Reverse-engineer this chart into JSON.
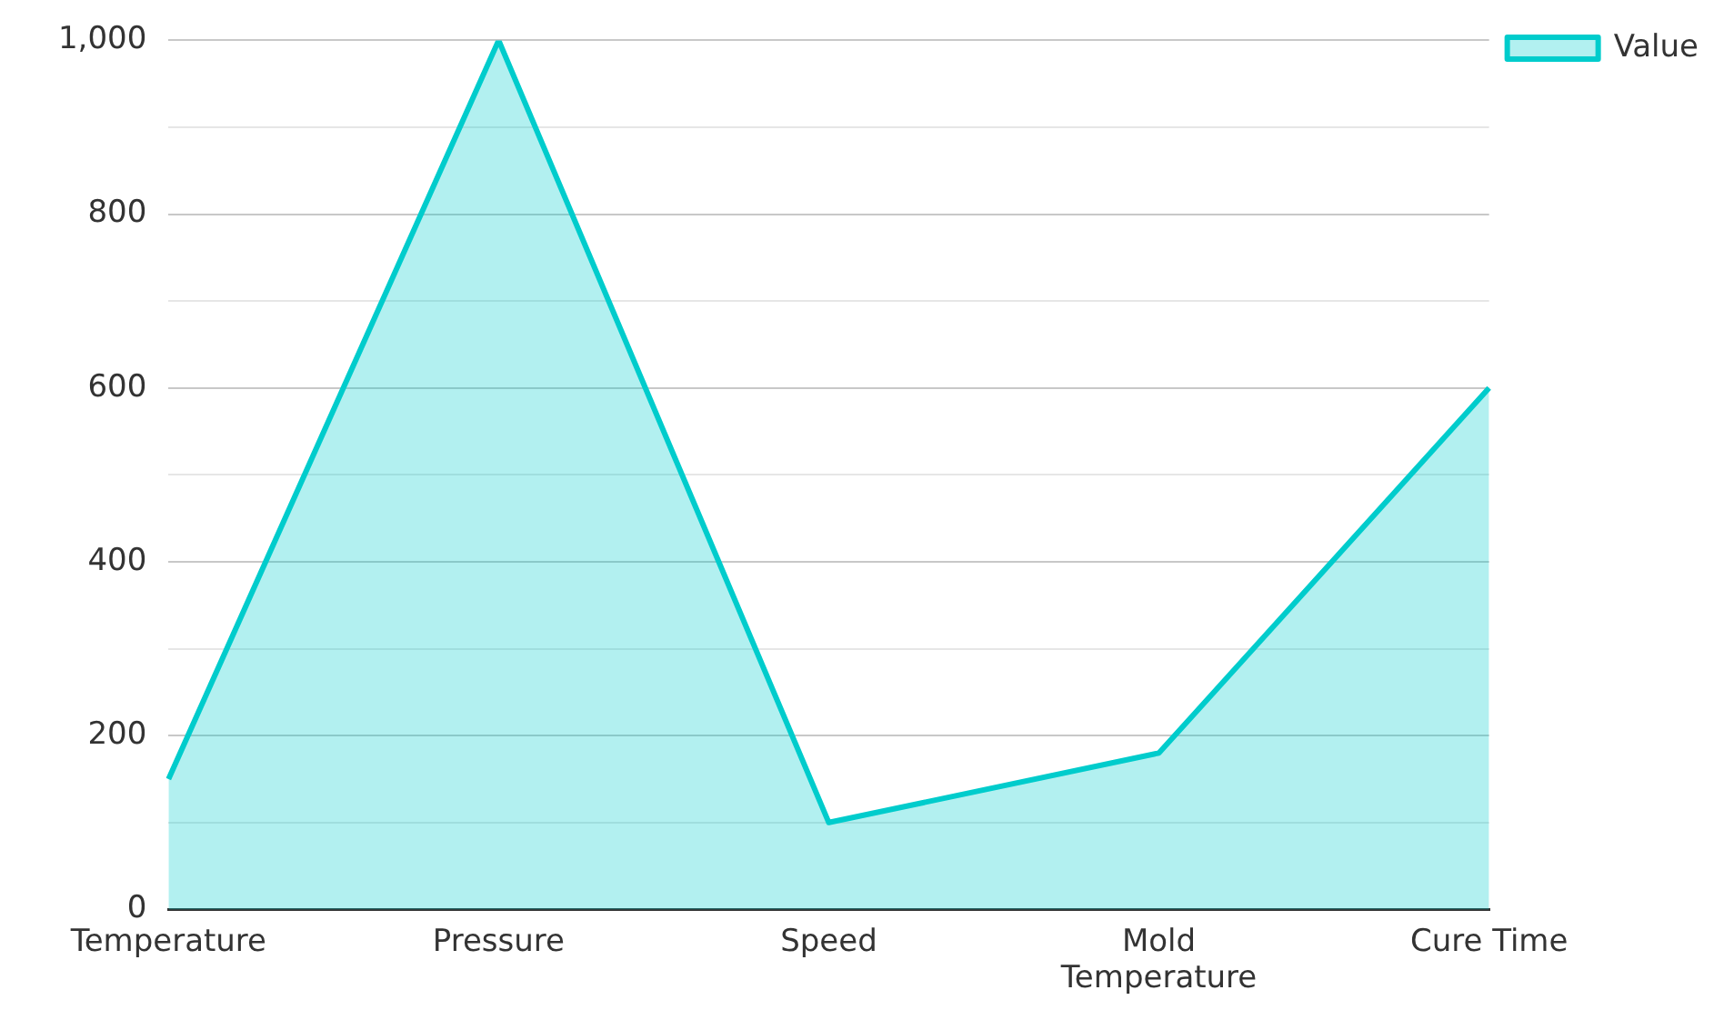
{
  "chart_data": {
    "type": "area",
    "categories": [
      "Temperature",
      "Pressure",
      "Speed",
      "Mold Temperature",
      "Cure Time"
    ],
    "series": [
      {
        "name": "Value",
        "color": "#00cccc",
        "values": [
          150,
          1000,
          100,
          180,
          600
        ]
      }
    ],
    "ylim": [
      0,
      1000
    ],
    "yticks": [
      0,
      {
        "value": 100,
        "label": null
      },
      {
        "value": 200,
        "label": "200"
      },
      {
        "value": 300,
        "label": null
      },
      {
        "value": 400,
        "label": "400"
      },
      {
        "value": 500,
        "label": null
      },
      {
        "value": 600,
        "label": "600"
      },
      {
        "value": 700,
        "label": null
      },
      {
        "value": 800,
        "label": "800"
      },
      {
        "value": 900,
        "label": null
      },
      {
        "value": 1000,
        "label": "1,000"
      }
    ],
    "grid": "y",
    "legend": "top right",
    "marker": "none",
    "line_style": "solid"
  }
}
